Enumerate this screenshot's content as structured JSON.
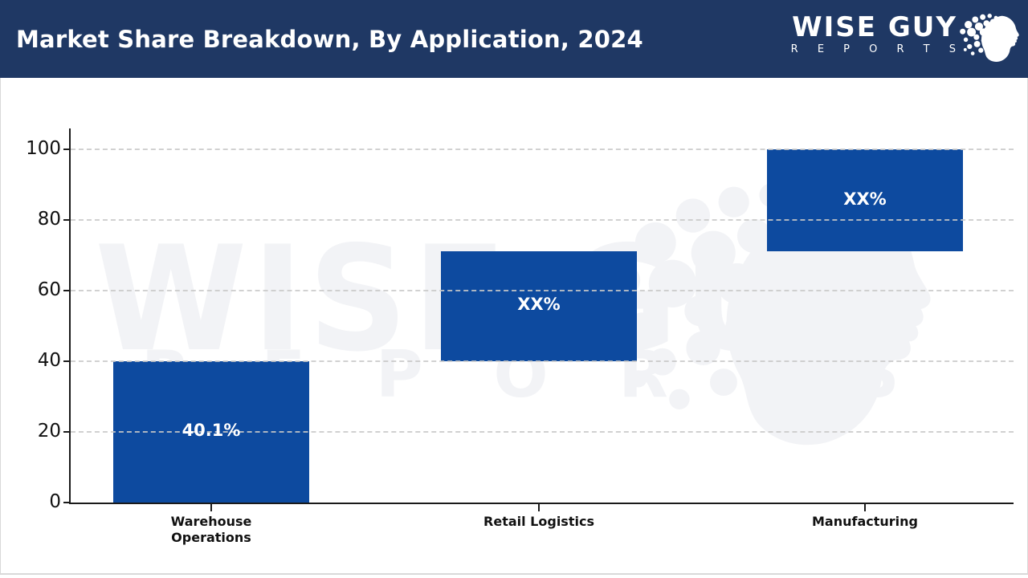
{
  "header": {
    "title": "Market Share Breakdown, By Application, 2024",
    "bg_color": "#1f3864",
    "logo": {
      "line1": "WISE GUY",
      "line2": "R E P O R T S",
      "head_icon": "dotted-face-profile"
    }
  },
  "watermark": {
    "line1": "WISE GUY",
    "line2": "R E P O R T S"
  },
  "chart_data": {
    "type": "bar",
    "subtype": "floating-waterfall",
    "title": "Market Share Breakdown, By Application, 2024",
    "categories": [
      "Warehouse Operations",
      "Retail Logistics",
      "Manufacturing"
    ],
    "tick_labels": [
      "Warehouse\nOperations",
      "Retail Logistics",
      "Manufacturing"
    ],
    "segments": [
      {
        "category": "Warehouse Operations",
        "start": 0,
        "end": 40.1,
        "label": "40.1%"
      },
      {
        "category": "Retail Logistics",
        "start": 40.1,
        "end": 71.1,
        "label": "XX%"
      },
      {
        "category": "Manufacturing",
        "start": 71.1,
        "end": 99.9,
        "label": "XX%"
      }
    ],
    "yticks": [
      0,
      20,
      40,
      60,
      80,
      100
    ],
    "ylim": [
      0,
      107
    ],
    "xlabel": "",
    "ylabel": "",
    "grid": "dashed-horizontal",
    "legend": "none",
    "bar_color": "#0d4a9f",
    "bar_label_color": "#ffffff",
    "axis_color": "#1a1a1a",
    "grid_color": "#c9c9c9"
  }
}
